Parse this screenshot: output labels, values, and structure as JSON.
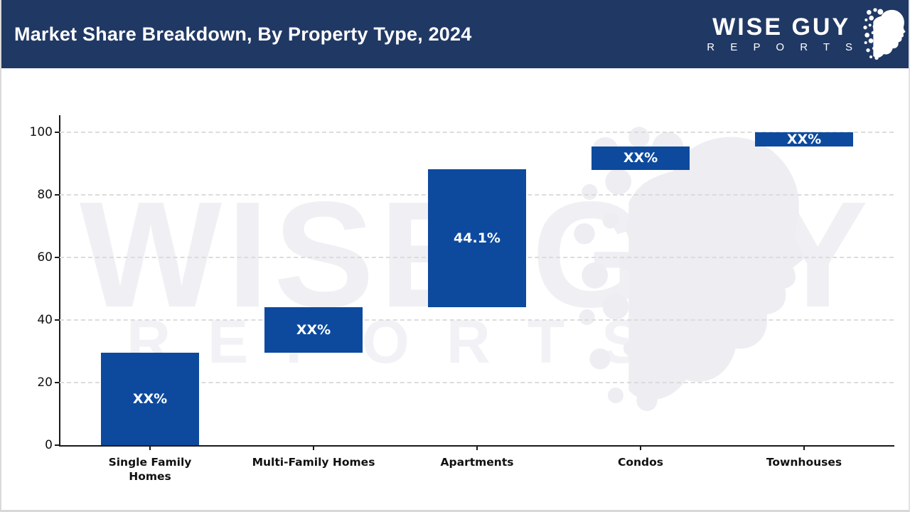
{
  "header": {
    "title": "Market Share Breakdown, By Property Type, 2024",
    "logo": {
      "name": "WISE GUY",
      "subtitle": "R E P O R T S"
    }
  },
  "watermark": {
    "line1": "WISE GUY",
    "line2": "R E P O R T S"
  },
  "colors": {
    "header_bg": "#203864",
    "bar": "#0d4a9e",
    "bar_label": "#ffffff",
    "axis": "#1a1a1a",
    "gridline": "#dcdcdc",
    "watermark": "#f0f0f4"
  },
  "chart_data": {
    "type": "bar",
    "subtype": "waterfall",
    "title": "Market Share Breakdown, By Property Type, 2024",
    "categories": [
      "Single Family\nHomes",
      "Multi-Family Homes",
      "Apartments",
      "Condos",
      "Townhouses"
    ],
    "segments": [
      {
        "category": "Single Family Homes",
        "start": 0,
        "end": 29.5,
        "label": "XX%"
      },
      {
        "category": "Multi-Family Homes",
        "start": 29.5,
        "end": 44,
        "label": "XX%"
      },
      {
        "category": "Apartments",
        "start": 44,
        "end": 88.1,
        "label": "44.1%",
        "value": 44.1
      },
      {
        "category": "Condos",
        "start": 88,
        "end": 95.5,
        "label": "XX%"
      },
      {
        "category": "Townhouses",
        "start": 95.5,
        "end": 100,
        "label": "XX%"
      }
    ],
    "ylim": [
      0,
      100
    ],
    "yticks": [
      0,
      20,
      40,
      60,
      80,
      100
    ],
    "xlabel": "",
    "ylabel": "",
    "grid": "horizontal-dashed",
    "legend": "none",
    "bar_color": "#0d4a9e"
  }
}
